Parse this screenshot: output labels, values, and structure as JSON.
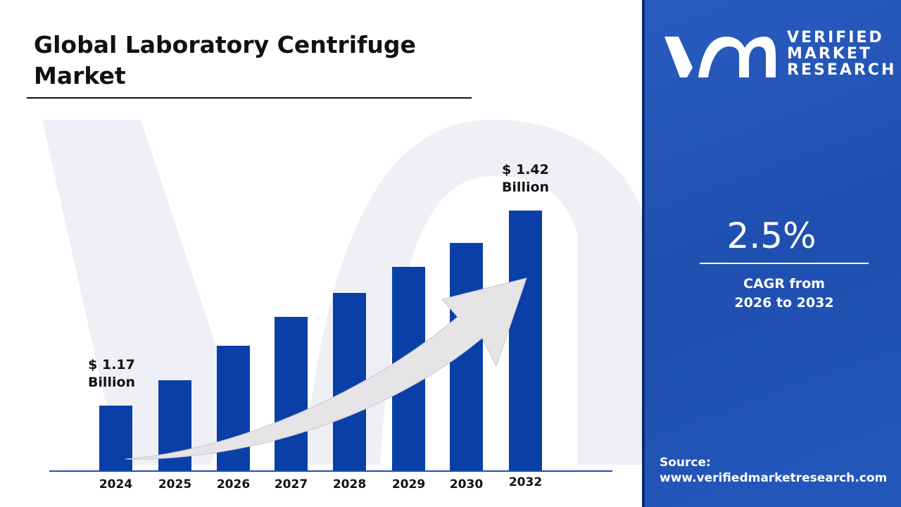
{
  "title": "Global Laboratory Centrifuge Market",
  "chart_data": {
    "type": "bar",
    "categories": [
      "2024",
      "2025",
      "2026",
      "2027",
      "2028",
      "2029",
      "2030",
      "2032"
    ],
    "values": [
      1.17,
      null,
      null,
      null,
      null,
      null,
      null,
      1.42
    ],
    "unit": "Billion",
    "data_labels": [
      {
        "category": "2024",
        "line1": "$ 1.17",
        "line2": "Billion"
      },
      {
        "category": "2032",
        "line1": "$ 1.42",
        "line2": "Billion"
      }
    ],
    "bar_color": "#0a3fa8",
    "trend_arrow": true,
    "grid": false
  },
  "sidebar": {
    "logo_lines": [
      "VERIFIED",
      "MARKET",
      "RESEARCH"
    ],
    "cagr_value": "2.5%",
    "cagr_label_1": "CAGR from",
    "cagr_label_2": "2026 to 2032",
    "source_label": "Source:",
    "source_url": "www.verifiedmarketresearch.com",
    "background": "#2458bb"
  }
}
